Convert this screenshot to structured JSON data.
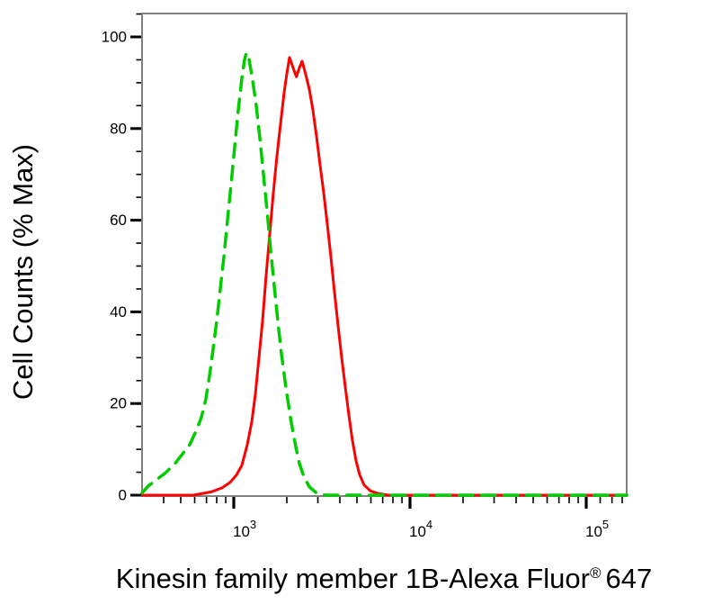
{
  "figure": {
    "background_color": "#ffffff",
    "frame_color": "#808080",
    "tick_color": "#000000",
    "text_color": "#000000"
  },
  "y_axis": {
    "label": "Cell Counts (% Max)",
    "major_ticks": [
      0,
      20,
      40,
      60,
      80,
      100
    ],
    "minor_step": 5,
    "range_max": 105
  },
  "x_axis": {
    "title_main": "Kinesin family member 1B-Alexa Fluor",
    "title_registered": "®",
    "title_suffix": "647",
    "scale": "log",
    "major_ticks": [
      1000,
      10000,
      100000
    ],
    "major_labels": [
      {
        "base": "10",
        "exp": "3"
      },
      {
        "base": "10",
        "exp": "4"
      },
      {
        "base": "10",
        "exp": "5"
      }
    ],
    "extra_minor_ticks": [
      120000,
      140000,
      160000
    ]
  },
  "chart_data": {
    "type": "line",
    "title": "",
    "xlabel": "Kinesin family member 1B-Alexa Fluor® 647",
    "ylabel": "Cell Counts (% Max)",
    "x_scale": "log",
    "xlim": [
      300,
      170000
    ],
    "ylim": [
      0,
      105
    ],
    "grid": false,
    "legend": "none",
    "series": [
      {
        "name": "red-solid",
        "line_style": "solid",
        "color": "#ff0000",
        "peak": {
          "x": 2070,
          "y": 95.5
        },
        "points": [
          [
            302,
            0
          ],
          [
            589,
            0
          ],
          [
            745,
            0.7
          ],
          [
            858,
            1.6
          ],
          [
            954,
            2.8
          ],
          [
            1036,
            4.4
          ],
          [
            1112,
            6.5
          ],
          [
            1193,
            11
          ],
          [
            1265,
            16
          ],
          [
            1325,
            22
          ],
          [
            1390,
            30
          ],
          [
            1456,
            38
          ],
          [
            1527,
            48
          ],
          [
            1600,
            57
          ],
          [
            1676,
            66
          ],
          [
            1758,
            74
          ],
          [
            1841,
            81
          ],
          [
            1932,
            88
          ],
          [
            2000,
            92
          ],
          [
            2071,
            95.5
          ],
          [
            2173,
            93.2
          ],
          [
            2264,
            91.3
          ],
          [
            2355,
            93.2
          ],
          [
            2443,
            94.7
          ],
          [
            2560,
            91.8
          ],
          [
            2685,
            88.5
          ],
          [
            2812,
            84
          ],
          [
            2944,
            78.5
          ],
          [
            3090,
            72
          ],
          [
            3236,
            66
          ],
          [
            3396,
            59
          ],
          [
            3556,
            52
          ],
          [
            3724,
            44.5
          ],
          [
            3908,
            37
          ],
          [
            4093,
            30
          ],
          [
            4295,
            23.5
          ],
          [
            4498,
            17.5
          ],
          [
            4710,
            12
          ],
          [
            4943,
            7.5
          ],
          [
            5176,
            4.5
          ],
          [
            5495,
            2.2
          ],
          [
            5970,
            0.9
          ],
          [
            6714,
            0.3
          ],
          [
            7551,
            0
          ],
          [
            169800,
            0
          ]
        ]
      },
      {
        "name": "green-dashed",
        "line_style": "dashed",
        "color": "#00cc00",
        "peak": {
          "x": 1178,
          "y": 96.5
        },
        "points": [
          [
            302,
            0.5
          ],
          [
            327,
            2
          ],
          [
            368,
            3.5
          ],
          [
            414,
            5
          ],
          [
            466,
            7
          ],
          [
            512,
            9
          ],
          [
            562,
            11
          ],
          [
            611,
            14
          ],
          [
            655,
            17
          ],
          [
            695,
            21
          ],
          [
            728,
            26
          ],
          [
            764,
            32
          ],
          [
            800,
            38
          ],
          [
            838,
            45
          ],
          [
            879,
            52
          ],
          [
            921,
            60
          ],
          [
            966,
            68
          ],
          [
            1012,
            76
          ],
          [
            1061,
            84
          ],
          [
            1112,
            91
          ],
          [
            1151,
            95
          ],
          [
            1178,
            96.5
          ],
          [
            1222,
            95
          ],
          [
            1280,
            90.5
          ],
          [
            1342,
            85
          ],
          [
            1406,
            78
          ],
          [
            1473,
            70
          ],
          [
            1546,
            62
          ],
          [
            1619,
            53.5
          ],
          [
            1698,
            45.5
          ],
          [
            1778,
            38
          ],
          [
            1862,
            31
          ],
          [
            1977,
            23.5
          ],
          [
            2096,
            17
          ],
          [
            2222,
            11.5
          ],
          [
            2355,
            7
          ],
          [
            2500,
            4
          ],
          [
            2685,
            1.8
          ],
          [
            2944,
            0.5
          ],
          [
            3311,
            0
          ],
          [
            169800,
            0
          ]
        ]
      }
    ]
  }
}
